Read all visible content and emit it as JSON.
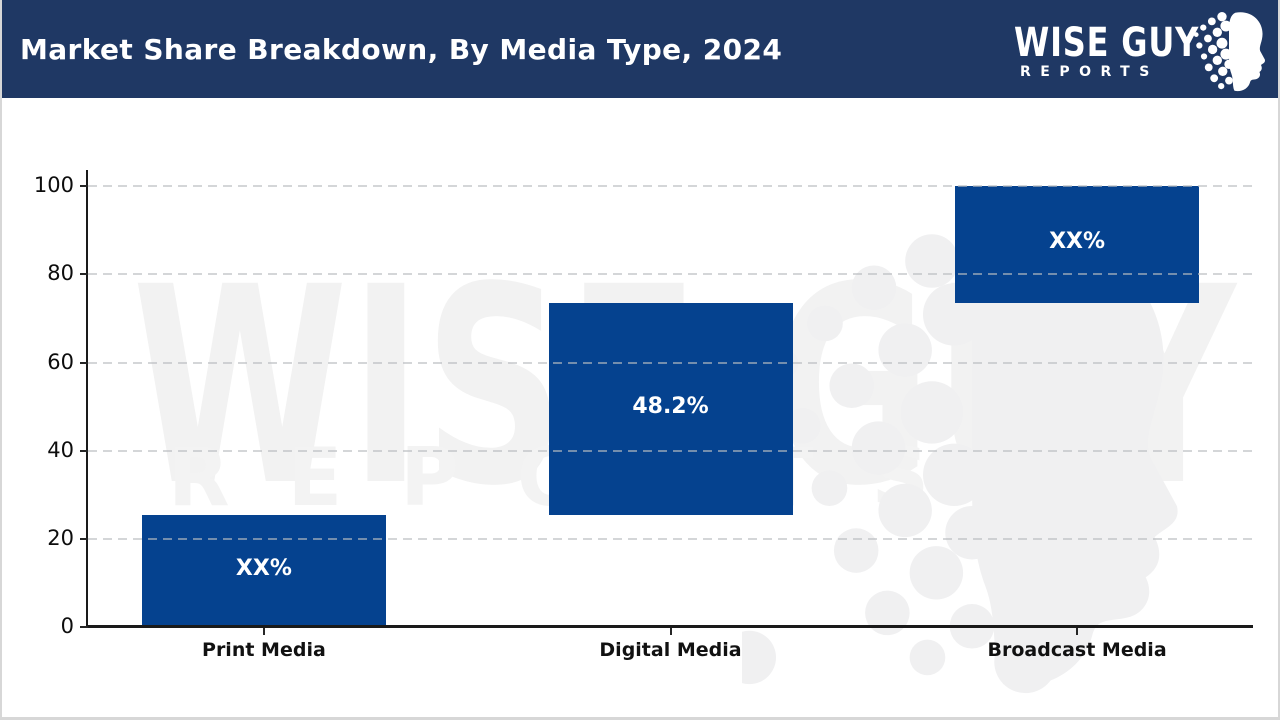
{
  "header": {
    "title": "Market Share Breakdown, By Media Type, 2024",
    "logo_line1": "WISE GUY",
    "logo_line2": "REPORTS"
  },
  "watermark": {
    "line1": "WISE GUY",
    "line2": "REPORTS"
  },
  "theme": {
    "header_bg": "#1f3864",
    "bar_color": "#05428f",
    "grid_color": "#d9d9d9",
    "axis_color": "#1a1a1a",
    "watermark_color": "#f2f2f2"
  },
  "chart_data": {
    "type": "bar",
    "subtype": "floating-waterfall-segments",
    "title": "Market Share Breakdown, By Media Type, 2024",
    "categories": [
      "Print Media",
      "Digital Media",
      "Broadcast Media"
    ],
    "bars": [
      {
        "category": "Print Media",
        "start": 0,
        "end": 25.4,
        "value_label": "XX%"
      },
      {
        "category": "Digital Media",
        "start": 25.4,
        "end": 73.6,
        "value_label": "48.2%"
      },
      {
        "category": "Broadcast Media",
        "start": 73.6,
        "end": 100,
        "value_label": "XX%"
      }
    ],
    "yticks": [
      0,
      20,
      40,
      60,
      80,
      100
    ],
    "ylim": [
      0,
      103.7
    ],
    "xlabel": "",
    "ylabel": "",
    "grid": "horizontal-dashed",
    "legend": "none",
    "bar_color": "#05428f"
  }
}
